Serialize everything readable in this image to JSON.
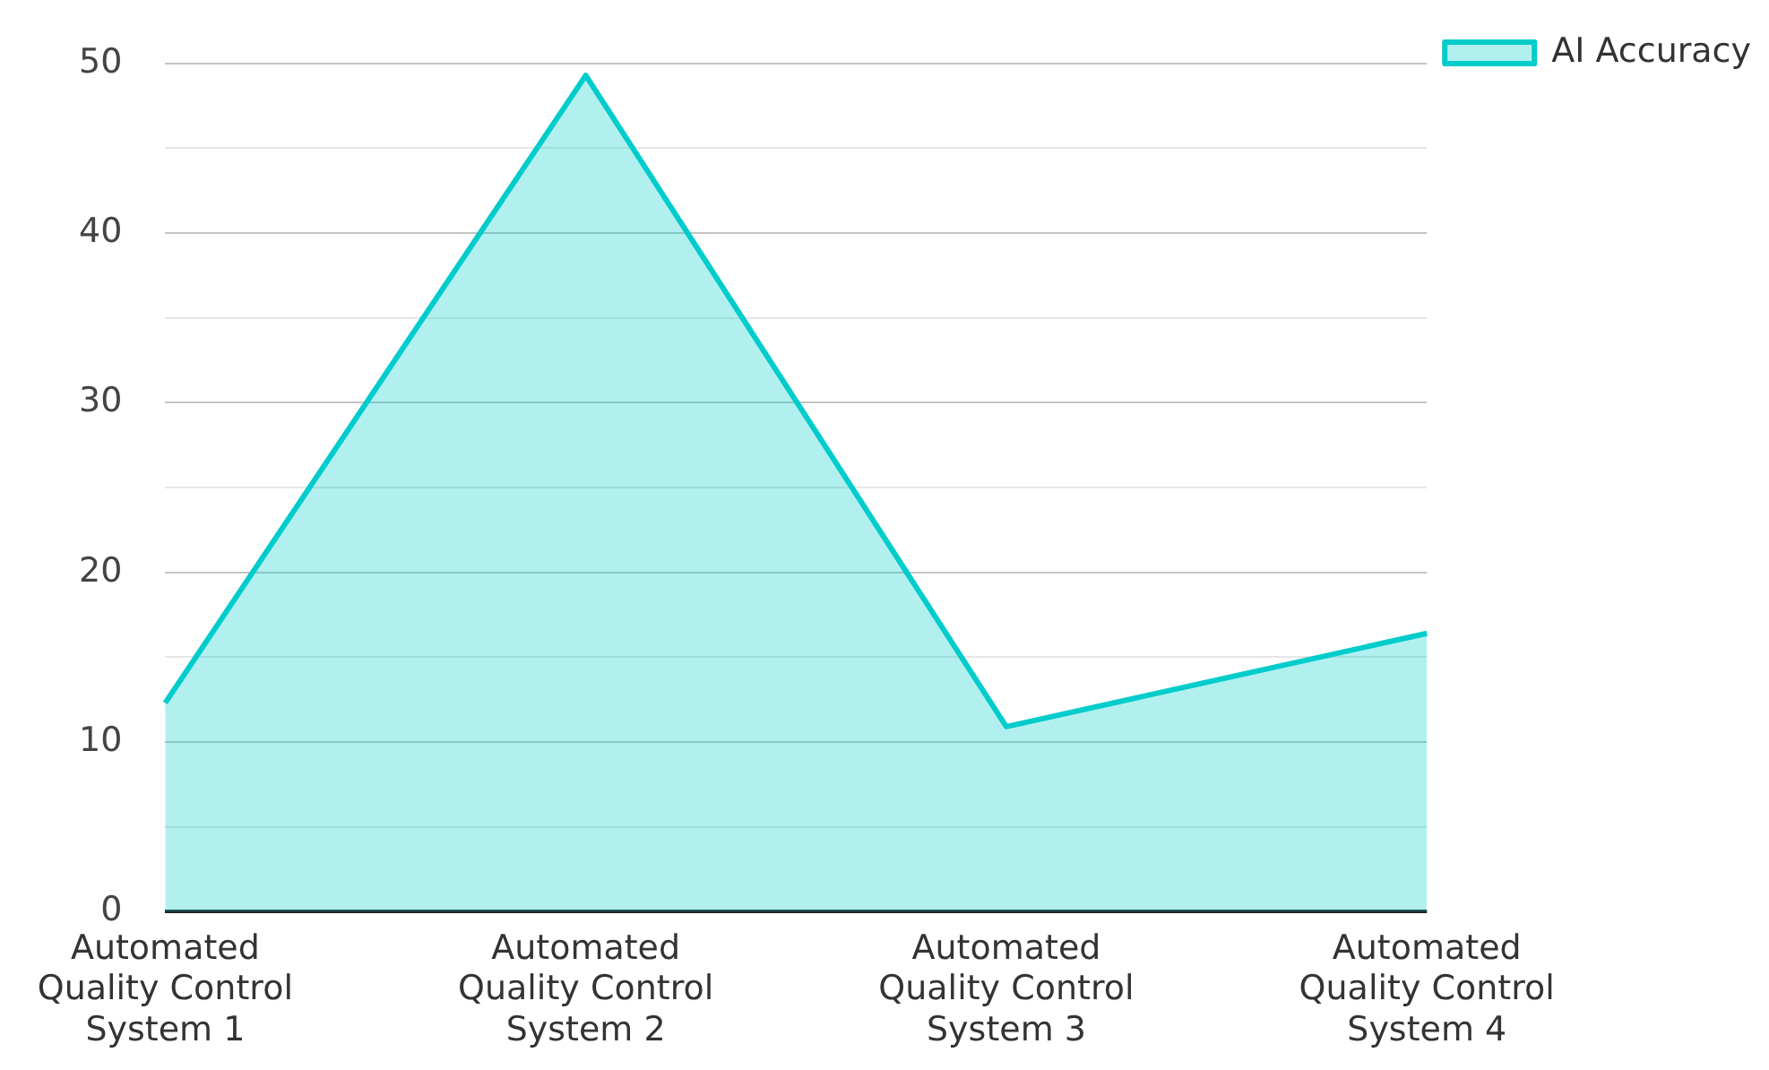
{
  "chart_data": {
    "type": "area",
    "categories": [
      "Automated Quality Control System 1",
      "Automated Quality Control System 2",
      "Automated Quality Control System 3",
      "Automated Quality Control System 4"
    ],
    "series": [
      {
        "name": "AI Accuracy",
        "color": "#00cccc",
        "values": [
          12.3,
          49.3,
          10.9,
          16.4
        ]
      }
    ],
    "ylim": [
      0,
      50
    ],
    "yticks": [
      0,
      {
        "value": 5,
        "label": null
      },
      10,
      {
        "value": 15,
        "label": null
      },
      20,
      {
        "value": 25,
        "label": null
      },
      30,
      {
        "value": 35,
        "label": null
      },
      40,
      {
        "value": 45,
        "label": null
      },
      50
    ],
    "grid": "y",
    "legend": "top right",
    "marker": "none"
  }
}
